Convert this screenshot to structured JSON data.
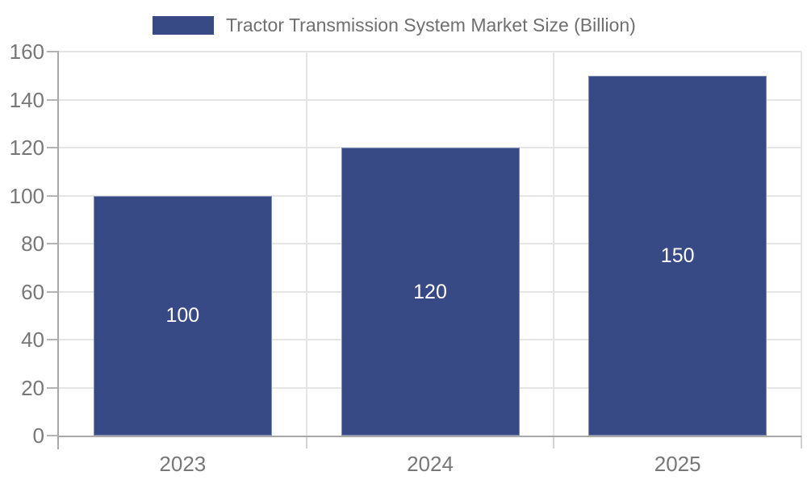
{
  "legend": {
    "label": "Tractor Transmission System Market Size (Billion)"
  },
  "chart_data": {
    "type": "bar",
    "title": "Tractor Transmission System Market Size (Billion)",
    "categories": [
      "2023",
      "2024",
      "2025"
    ],
    "values": [
      100,
      120,
      150
    ],
    "series": [
      {
        "name": "Tractor Transmission System Market Size (Billion)",
        "values": [
          100,
          120,
          150
        ]
      }
    ],
    "xlabel": "",
    "ylabel": "",
    "ylim": [
      0,
      160
    ],
    "ytick_step": 20,
    "yticks": [
      0,
      20,
      40,
      60,
      80,
      100,
      120,
      140,
      160
    ],
    "grid": true,
    "legend_position": "top",
    "bar_labels_visible": true,
    "colors": {
      "bar": "#384A85",
      "bar_label": "#FFFFFF",
      "grid": "#E5E5E5",
      "axis": "#A9A9A9",
      "y_tick_mark": "#B4B4B4",
      "x_tick_mark": "#D2D2D2",
      "tick_label": "#777777",
      "legend_text": "#6F6F6F"
    }
  }
}
